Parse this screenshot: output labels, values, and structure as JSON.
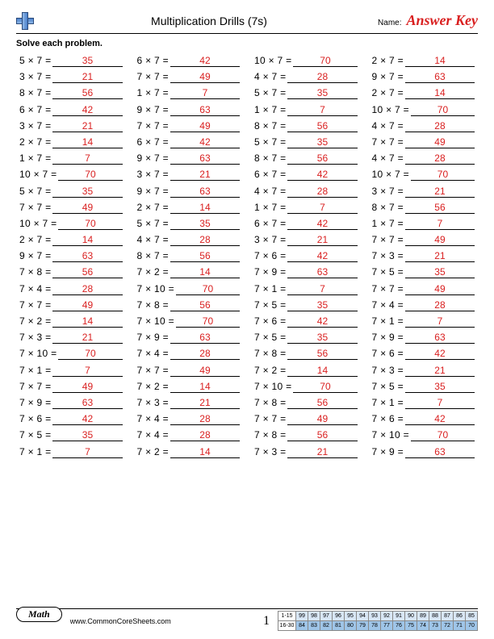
{
  "header": {
    "title": "Multiplication Drills (7s)",
    "name_label": "Name:",
    "answer_key": "Answer Key"
  },
  "instruction": "Solve each problem.",
  "answer_color": "#d92020",
  "columns": [
    [
      {
        "a": 5,
        "b": 7,
        "ans": 35
      },
      {
        "a": 3,
        "b": 7,
        "ans": 21
      },
      {
        "a": 8,
        "b": 7,
        "ans": 56
      },
      {
        "a": 6,
        "b": 7,
        "ans": 42
      },
      {
        "a": 3,
        "b": 7,
        "ans": 21
      },
      {
        "a": 2,
        "b": 7,
        "ans": 14
      },
      {
        "a": 1,
        "b": 7,
        "ans": 7
      },
      {
        "a": 10,
        "b": 7,
        "ans": 70
      },
      {
        "a": 5,
        "b": 7,
        "ans": 35
      },
      {
        "a": 7,
        "b": 7,
        "ans": 49
      },
      {
        "a": 10,
        "b": 7,
        "ans": 70
      },
      {
        "a": 2,
        "b": 7,
        "ans": 14
      },
      {
        "a": 9,
        "b": 7,
        "ans": 63
      },
      {
        "a": 7,
        "b": 8,
        "ans": 56
      },
      {
        "a": 7,
        "b": 4,
        "ans": 28
      },
      {
        "a": 7,
        "b": 7,
        "ans": 49
      },
      {
        "a": 7,
        "b": 2,
        "ans": 14
      },
      {
        "a": 7,
        "b": 3,
        "ans": 21
      },
      {
        "a": 7,
        "b": 10,
        "ans": 70
      },
      {
        "a": 7,
        "b": 1,
        "ans": 7
      },
      {
        "a": 7,
        "b": 7,
        "ans": 49
      },
      {
        "a": 7,
        "b": 9,
        "ans": 63
      },
      {
        "a": 7,
        "b": 6,
        "ans": 42
      },
      {
        "a": 7,
        "b": 5,
        "ans": 35
      },
      {
        "a": 7,
        "b": 1,
        "ans": 7
      }
    ],
    [
      {
        "a": 6,
        "b": 7,
        "ans": 42
      },
      {
        "a": 7,
        "b": 7,
        "ans": 49
      },
      {
        "a": 1,
        "b": 7,
        "ans": 7
      },
      {
        "a": 9,
        "b": 7,
        "ans": 63
      },
      {
        "a": 7,
        "b": 7,
        "ans": 49
      },
      {
        "a": 6,
        "b": 7,
        "ans": 42
      },
      {
        "a": 9,
        "b": 7,
        "ans": 63
      },
      {
        "a": 3,
        "b": 7,
        "ans": 21
      },
      {
        "a": 9,
        "b": 7,
        "ans": 63
      },
      {
        "a": 2,
        "b": 7,
        "ans": 14
      },
      {
        "a": 5,
        "b": 7,
        "ans": 35
      },
      {
        "a": 4,
        "b": 7,
        "ans": 28
      },
      {
        "a": 8,
        "b": 7,
        "ans": 56
      },
      {
        "a": 7,
        "b": 2,
        "ans": 14
      },
      {
        "a": 7,
        "b": 10,
        "ans": 70
      },
      {
        "a": 7,
        "b": 8,
        "ans": 56
      },
      {
        "a": 7,
        "b": 10,
        "ans": 70
      },
      {
        "a": 7,
        "b": 9,
        "ans": 63
      },
      {
        "a": 7,
        "b": 4,
        "ans": 28
      },
      {
        "a": 7,
        "b": 7,
        "ans": 49
      },
      {
        "a": 7,
        "b": 2,
        "ans": 14
      },
      {
        "a": 7,
        "b": 3,
        "ans": 21
      },
      {
        "a": 7,
        "b": 4,
        "ans": 28
      },
      {
        "a": 7,
        "b": 4,
        "ans": 28
      },
      {
        "a": 7,
        "b": 2,
        "ans": 14
      }
    ],
    [
      {
        "a": 10,
        "b": 7,
        "ans": 70
      },
      {
        "a": 4,
        "b": 7,
        "ans": 28
      },
      {
        "a": 5,
        "b": 7,
        "ans": 35
      },
      {
        "a": 1,
        "b": 7,
        "ans": 7
      },
      {
        "a": 8,
        "b": 7,
        "ans": 56
      },
      {
        "a": 5,
        "b": 7,
        "ans": 35
      },
      {
        "a": 8,
        "b": 7,
        "ans": 56
      },
      {
        "a": 6,
        "b": 7,
        "ans": 42
      },
      {
        "a": 4,
        "b": 7,
        "ans": 28
      },
      {
        "a": 1,
        "b": 7,
        "ans": 7
      },
      {
        "a": 6,
        "b": 7,
        "ans": 42
      },
      {
        "a": 3,
        "b": 7,
        "ans": 21
      },
      {
        "a": 7,
        "b": 6,
        "ans": 42
      },
      {
        "a": 7,
        "b": 9,
        "ans": 63
      },
      {
        "a": 7,
        "b": 1,
        "ans": 7
      },
      {
        "a": 7,
        "b": 5,
        "ans": 35
      },
      {
        "a": 7,
        "b": 6,
        "ans": 42
      },
      {
        "a": 7,
        "b": 5,
        "ans": 35
      },
      {
        "a": 7,
        "b": 8,
        "ans": 56
      },
      {
        "a": 7,
        "b": 2,
        "ans": 14
      },
      {
        "a": 7,
        "b": 10,
        "ans": 70
      },
      {
        "a": 7,
        "b": 8,
        "ans": 56
      },
      {
        "a": 7,
        "b": 7,
        "ans": 49
      },
      {
        "a": 7,
        "b": 8,
        "ans": 56
      },
      {
        "a": 7,
        "b": 3,
        "ans": 21
      }
    ],
    [
      {
        "a": 2,
        "b": 7,
        "ans": 14
      },
      {
        "a": 9,
        "b": 7,
        "ans": 63
      },
      {
        "a": 2,
        "b": 7,
        "ans": 14
      },
      {
        "a": 10,
        "b": 7,
        "ans": 70
      },
      {
        "a": 4,
        "b": 7,
        "ans": 28
      },
      {
        "a": 7,
        "b": 7,
        "ans": 49
      },
      {
        "a": 4,
        "b": 7,
        "ans": 28
      },
      {
        "a": 10,
        "b": 7,
        "ans": 70
      },
      {
        "a": 3,
        "b": 7,
        "ans": 21
      },
      {
        "a": 8,
        "b": 7,
        "ans": 56
      },
      {
        "a": 1,
        "b": 7,
        "ans": 7
      },
      {
        "a": 7,
        "b": 7,
        "ans": 49
      },
      {
        "a": 7,
        "b": 3,
        "ans": 21
      },
      {
        "a": 7,
        "b": 5,
        "ans": 35
      },
      {
        "a": 7,
        "b": 7,
        "ans": 49
      },
      {
        "a": 7,
        "b": 4,
        "ans": 28
      },
      {
        "a": 7,
        "b": 1,
        "ans": 7
      },
      {
        "a": 7,
        "b": 9,
        "ans": 63
      },
      {
        "a": 7,
        "b": 6,
        "ans": 42
      },
      {
        "a": 7,
        "b": 3,
        "ans": 21
      },
      {
        "a": 7,
        "b": 5,
        "ans": 35
      },
      {
        "a": 7,
        "b": 1,
        "ans": 7
      },
      {
        "a": 7,
        "b": 6,
        "ans": 42
      },
      {
        "a": 7,
        "b": 10,
        "ans": 70
      },
      {
        "a": 7,
        "b": 9,
        "ans": 63
      }
    ]
  ],
  "footer": {
    "subject": "Math",
    "url": "www.CommonCoreSheets.com",
    "page": "1",
    "score_rows": [
      {
        "label": "1-15",
        "values": [
          99,
          98,
          97,
          96,
          95,
          94,
          93,
          92,
          91,
          90,
          89,
          88,
          87,
          86,
          85
        ]
      },
      {
        "label": "16-30",
        "values": [
          84,
          83,
          82,
          81,
          80,
          79,
          78,
          77,
          76,
          75,
          74,
          73,
          72,
          71,
          70
        ]
      }
    ]
  }
}
